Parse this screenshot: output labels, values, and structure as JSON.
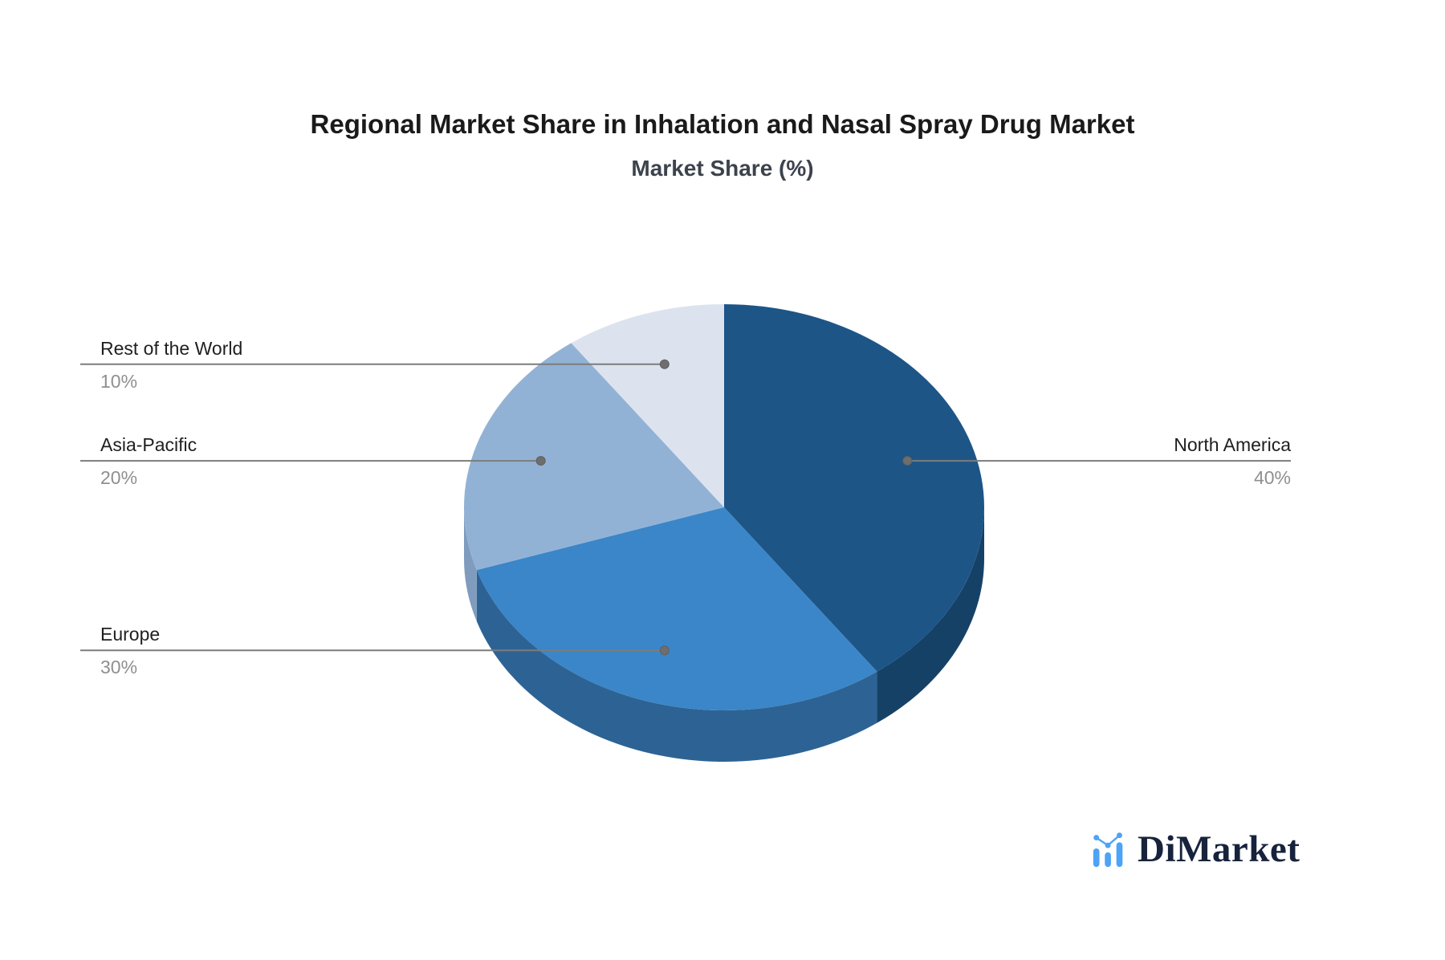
{
  "chart_data": {
    "type": "pie",
    "style": "3d",
    "title": "Regional Market Share in Inhalation and Nasal Spray Drug Market",
    "subtitle": "Market Share (%)",
    "direction": "clockwise",
    "start_angle_deg": 90,
    "value_suffix": "%",
    "legend_position": "none",
    "slices": [
      {
        "label": "North America",
        "value": 40,
        "display_value": "40%",
        "color": "#1d5587",
        "side_color": "#164167",
        "label_side": "right"
      },
      {
        "label": "Europe",
        "value": 30,
        "display_value": "30%",
        "color": "#3a86c8",
        "side_color": "#2d6394",
        "label_side": "left"
      },
      {
        "label": "Asia-Pacific",
        "value": 20,
        "display_value": "20%",
        "color": "#92b2d5",
        "side_color": "#7f9cbe",
        "label_side": "left"
      },
      {
        "label": "Rest of the World",
        "value": 10,
        "display_value": "10%",
        "color": "#dce3ef",
        "side_color": "#b9c6da",
        "label_side": "left"
      }
    ],
    "leader_line_color": "#7c7c7c",
    "dot_color": "#6e6e6e",
    "label_text_color": "#1f1f1f",
    "value_text_color": "#8f8f8f"
  },
  "logo": {
    "text": "DiMarket",
    "icon": "bar-line-chart-icon",
    "icon_color": "#4da3f5",
    "text_color": "#17233c"
  }
}
